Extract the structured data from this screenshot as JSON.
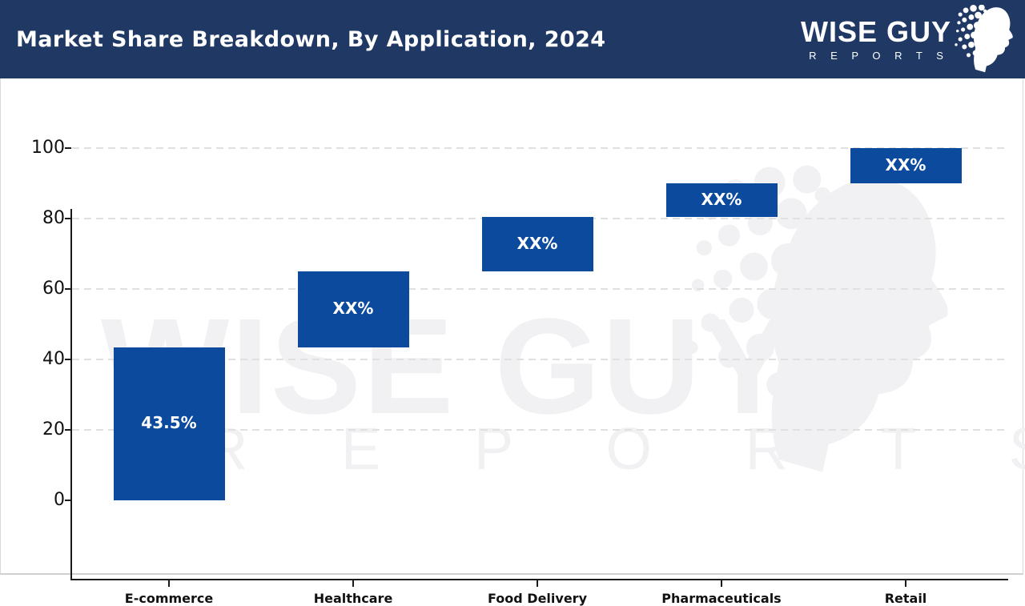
{
  "header": {
    "title": "Market Share Breakdown, By Application, 2024",
    "logo": {
      "wordmark": "WISE GUY",
      "subtext": "R E P O R T S",
      "head_icon": "dotted-head-profile-icon"
    }
  },
  "watermark": {
    "line1": "WISE GUY",
    "line2": "R E P O R T S",
    "head_icon": "dotted-head-profile-icon"
  },
  "colors": {
    "header_bg": "#1f3864",
    "bar": "#0c4a9d",
    "grid": "#e0e0e0",
    "axis": "#1a1a1a",
    "bar_label": "#ffffff",
    "watermark": "#f1f1f3"
  },
  "chart_data": {
    "type": "bar",
    "variant": "waterfall",
    "title": "Market Share Breakdown, By Application, 2024",
    "xlabel": "",
    "ylabel": "",
    "categories": [
      "E-commerce",
      "Healthcare",
      "Food Delivery",
      "Pharmaceuticals",
      "Retail"
    ],
    "segments": [
      {
        "category": "E-commerce",
        "start": 0,
        "end": 43.5,
        "label": "43.5%"
      },
      {
        "category": "Healthcare",
        "start": 43.5,
        "end": 65,
        "label": "XX%"
      },
      {
        "category": "Food Delivery",
        "start": 65,
        "end": 80.5,
        "label": "XX%"
      },
      {
        "category": "Pharmaceuticals",
        "start": 80.5,
        "end": 90,
        "label": "XX%"
      },
      {
        "category": "Retail",
        "start": 90,
        "end": 100,
        "label": "XX%"
      }
    ],
    "yticks": [
      0,
      20,
      40,
      60,
      80,
      100
    ],
    "ylim": [
      0,
      105
    ],
    "grid": {
      "horizontal": true,
      "style": "dashed"
    },
    "legend": null,
    "bar_color": "#0c4a9d"
  }
}
